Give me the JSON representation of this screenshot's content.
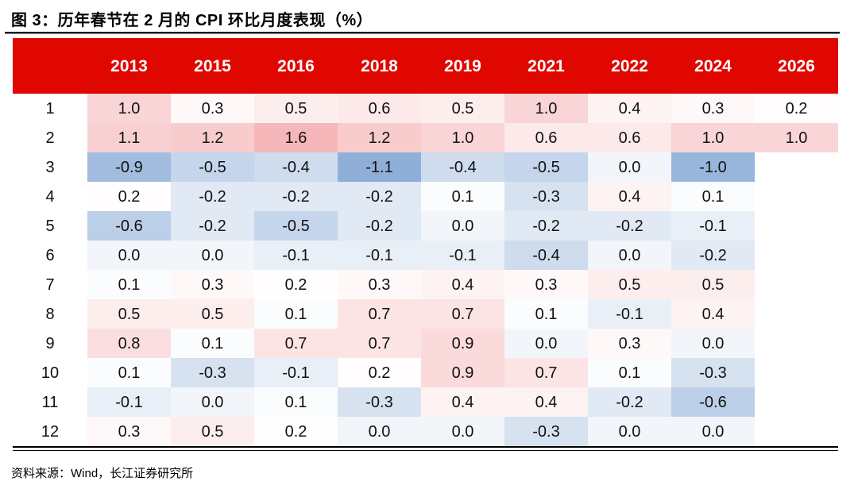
{
  "figure": {
    "title": "图 3：历年春节在 2 月的 CPI 环比月度表现（%）",
    "source": "资料来源：Wind，长江证券研究所"
  },
  "colors": {
    "header_bg": "#E00700",
    "header_text": "#FFFFFF",
    "positive_max_color": "#F6B7BA",
    "negative_max_color": "#8FAFD8",
    "neutral_color": "#FFFFFF"
  },
  "chart_data": {
    "type": "heatmap",
    "title": "图 3：历年春节在 2 月的 CPI 环比月度表现（%）",
    "columns": [
      "2013",
      "2015",
      "2016",
      "2018",
      "2019",
      "2021",
      "2022",
      "2024",
      "2026"
    ],
    "row_labels": [
      "1",
      "2",
      "3",
      "4",
      "5",
      "6",
      "7",
      "8",
      "9",
      "10",
      "11",
      "12"
    ],
    "values": [
      [
        1.0,
        0.3,
        0.5,
        0.6,
        0.5,
        1.0,
        0.4,
        0.3,
        0.2
      ],
      [
        1.1,
        1.2,
        1.6,
        1.2,
        1.0,
        0.6,
        0.6,
        1.0,
        1.0
      ],
      [
        -0.9,
        -0.5,
        -0.4,
        -1.1,
        -0.4,
        -0.5,
        0.0,
        -1.0,
        null
      ],
      [
        0.2,
        -0.2,
        -0.2,
        -0.2,
        0.1,
        -0.3,
        0.4,
        0.1,
        null
      ],
      [
        -0.6,
        -0.2,
        -0.5,
        -0.2,
        0.0,
        -0.2,
        -0.2,
        -0.1,
        null
      ],
      [
        0.0,
        0.0,
        -0.1,
        -0.1,
        -0.1,
        -0.4,
        0.0,
        -0.2,
        null
      ],
      [
        0.1,
        0.3,
        0.2,
        0.3,
        0.4,
        0.3,
        0.5,
        0.5,
        null
      ],
      [
        0.5,
        0.5,
        0.1,
        0.7,
        0.7,
        0.1,
        -0.1,
        0.4,
        null
      ],
      [
        0.8,
        0.1,
        0.7,
        0.7,
        0.9,
        0.0,
        0.3,
        0.0,
        null
      ],
      [
        0.1,
        -0.3,
        -0.1,
        0.2,
        0.9,
        0.7,
        0.1,
        -0.3,
        null
      ],
      [
        -0.1,
        0.0,
        0.1,
        -0.3,
        0.4,
        0.4,
        -0.2,
        -0.6,
        null
      ],
      [
        0.3,
        0.5,
        0.2,
        0.0,
        0.0,
        -0.3,
        0.0,
        0.0,
        null
      ]
    ],
    "color_scale": {
      "min": -1.1,
      "mid": 0.15,
      "max": 1.6
    },
    "legend_position": "none",
    "source": "资料来源：Wind，长江证券研究所"
  }
}
